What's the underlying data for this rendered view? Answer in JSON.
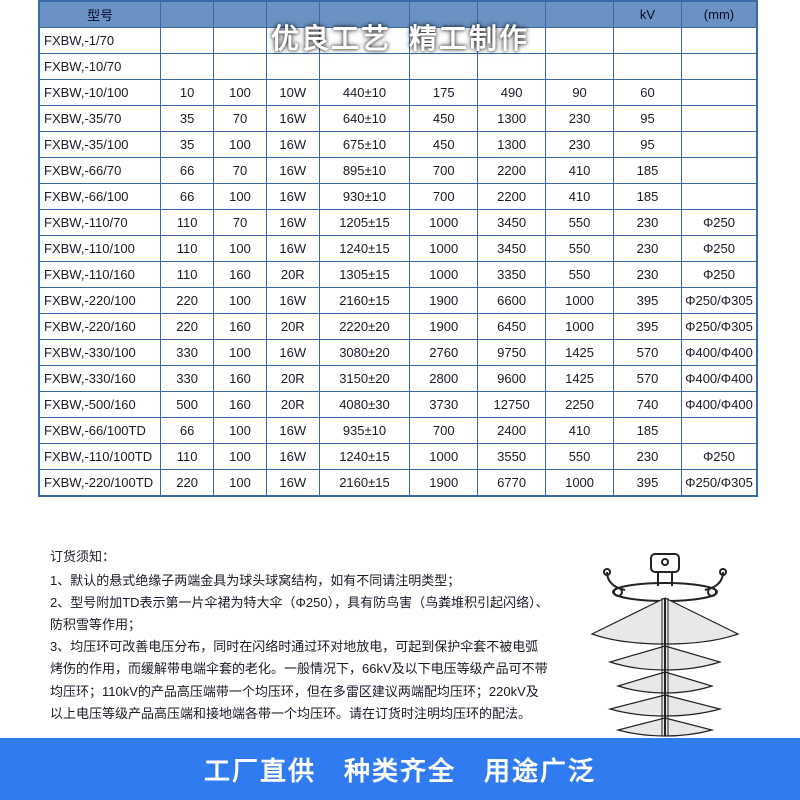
{
  "banner": {
    "left": "优良工艺",
    "right": "精工制作"
  },
  "footer": {
    "a": "工厂直供",
    "b": "种类齐全",
    "c": "用途广泛"
  },
  "table": {
    "header_border_color": "#3b6aa8",
    "header_bg": "#6a93c4",
    "columns": [
      "型号",
      "",
      "",
      "",
      "",
      "",
      "",
      "",
      "kV",
      "(mm)"
    ],
    "col_widths": [
      "14%",
      "7%",
      "7%",
      "7%",
      "12%",
      "9%",
      "9%",
      "9%",
      "9%",
      "10%"
    ],
    "rows": [
      [
        "FXBW,-1/70",
        "",
        "",
        "",
        "",
        "",
        "",
        "",
        "",
        ""
      ],
      [
        "FXBW,-10/70",
        "",
        "",
        "",
        "",
        "",
        "",
        "",
        "",
        ""
      ],
      [
        "FXBW,-10/100",
        "10",
        "100",
        "10W",
        "440±10",
        "175",
        "490",
        "90",
        "60",
        ""
      ],
      [
        "FXBW,-35/70",
        "35",
        "70",
        "16W",
        "640±10",
        "450",
        "1300",
        "230",
        "95",
        ""
      ],
      [
        "FXBW,-35/100",
        "35",
        "100",
        "16W",
        "675±10",
        "450",
        "1300",
        "230",
        "95",
        ""
      ],
      [
        "FXBW,-66/70",
        "66",
        "70",
        "16W",
        "895±10",
        "700",
        "2200",
        "410",
        "185",
        ""
      ],
      [
        "FXBW,-66/100",
        "66",
        "100",
        "16W",
        "930±10",
        "700",
        "2200",
        "410",
        "185",
        ""
      ],
      [
        "FXBW,-110/70",
        "110",
        "70",
        "16W",
        "1205±15",
        "1000",
        "3450",
        "550",
        "230",
        "Φ250"
      ],
      [
        "FXBW,-110/100",
        "110",
        "100",
        "16W",
        "1240±15",
        "1000",
        "3450",
        "550",
        "230",
        "Φ250"
      ],
      [
        "FXBW,-110/160",
        "110",
        "160",
        "20R",
        "1305±15",
        "1000",
        "3350",
        "550",
        "230",
        "Φ250"
      ],
      [
        "FXBW,-220/100",
        "220",
        "100",
        "16W",
        "2160±15",
        "1900",
        "6600",
        "1000",
        "395",
        "Φ250/Φ305"
      ],
      [
        "FXBW,-220/160",
        "220",
        "160",
        "20R",
        "2220±20",
        "1900",
        "6450",
        "1000",
        "395",
        "Φ250/Φ305"
      ],
      [
        "FXBW,-330/100",
        "330",
        "100",
        "16W",
        "3080±20",
        "2760",
        "9750",
        "1425",
        "570",
        "Φ400/Φ400"
      ],
      [
        "FXBW,-330/160",
        "330",
        "160",
        "20R",
        "3150±20",
        "2800",
        "9600",
        "1425",
        "570",
        "Φ400/Φ400"
      ],
      [
        "FXBW,-500/160",
        "500",
        "160",
        "20R",
        "4080±30",
        "3730",
        "12750",
        "2250",
        "740",
        "Φ400/Φ400"
      ],
      [
        "FXBW,-66/100TD",
        "66",
        "100",
        "16W",
        "935±10",
        "700",
        "2400",
        "410",
        "185",
        ""
      ],
      [
        "FXBW,-110/100TD",
        "110",
        "100",
        "16W",
        "1240±15",
        "1000",
        "3550",
        "550",
        "230",
        "Φ250"
      ],
      [
        "FXBW,-220/100TD",
        "220",
        "100",
        "16W",
        "2160±15",
        "1900",
        "6770",
        "1000",
        "395",
        "Φ250/Φ305"
      ]
    ]
  },
  "notes": {
    "title": "订货须知：",
    "lines": [
      "1、默认的悬式绝缘子两端金具为球头球窝结构，如有不同请注明类型；",
      "2、型号附加TD表示第一片伞裙为特大伞（Φ250），具有防鸟害（鸟粪堆积引起闪络）、防积雪等作用；",
      "3、均压环可改善电压分布，同时在闪络时通过环对地放电，可起到保护伞套不被电弧烤伤的作用，而缓解带电端伞套的老化。一般情况下，66kV及以下电压等级产品可不带均压环；110kV的产品高压端带一个均压环，但在多雷区建议两端配均压环；220kV及以上电压等级产品高压端和接地端各带一个均压环。请在订货时注明均压环的配法。"
    ]
  },
  "diagram": {
    "stroke": "#222222",
    "fill": "#e8e8e8",
    "bg": "#ffffff"
  }
}
